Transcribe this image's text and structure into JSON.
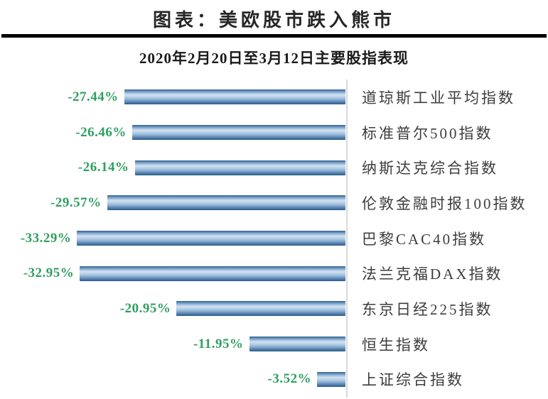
{
  "chart_data": {
    "type": "bar",
    "orientation": "horizontal",
    "title": "图表：美欧股市跌入熊市",
    "subtitle": "2020年2月20日至3月12日主要股指表现",
    "xlim": [
      -35,
      0
    ],
    "grid": false,
    "legend": false,
    "baseline": "right-vertical-axis",
    "categories": [
      "道琼斯工业平均指数",
      "标准普尔500指数",
      "纳斯达克综合指数",
      "伦敦金融时报100指数",
      "巴黎CAC40指数",
      "法兰克福DAX指数",
      "东京日经225指数",
      "恒生指数",
      "上证综合指数"
    ],
    "values": [
      -27.44,
      -26.46,
      -26.14,
      -29.57,
      -33.29,
      -32.95,
      -20.95,
      -11.95,
      -3.52
    ],
    "value_labels": [
      "-27.44%",
      "-26.46%",
      "-26.14%",
      "-29.57%",
      "-33.29%",
      "-32.95%",
      "-20.95%",
      "-11.95%",
      "-3.52%"
    ]
  },
  "colors": {
    "title_text": "#262626",
    "divider": "#000000",
    "subtitle_text": "#1a1a1a",
    "value_label": "#2f9e60",
    "index_label": "#3d3d3d",
    "axis_line": "#d9d9d9",
    "bar_edge": "#2d5a87",
    "bar_highlight": "#d3e2f1"
  }
}
